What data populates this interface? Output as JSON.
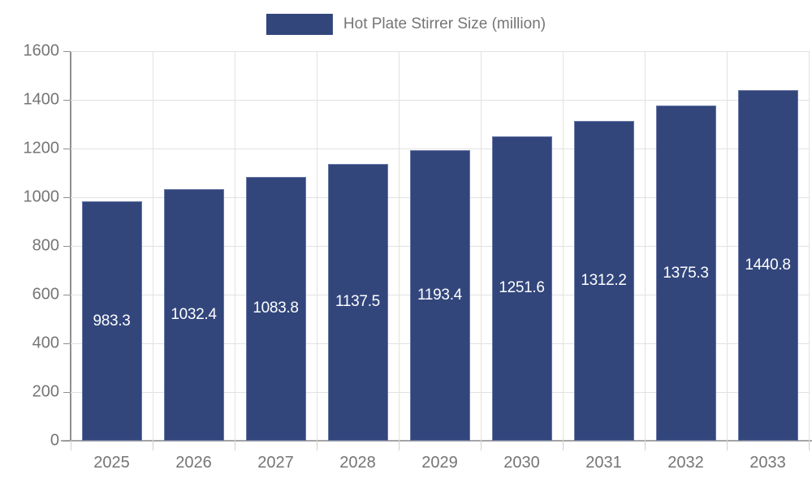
{
  "chart_data": {
    "type": "bar",
    "title": "Hot Plate Stirrer Size (million)",
    "categories": [
      "2025",
      "2026",
      "2027",
      "2028",
      "2029",
      "2030",
      "2031",
      "2032",
      "2033"
    ],
    "values": [
      983.3,
      1032.4,
      1083.8,
      1137.5,
      1193.4,
      1251.6,
      1312.2,
      1375.3,
      1440.8
    ],
    "value_labels": [
      "983.3",
      "1032.4",
      "1083.8",
      "1137.5",
      "1193.4",
      "1251.6",
      "1312.2",
      "1375.3",
      "1440.8"
    ],
    "xlabel": "",
    "ylabel": "",
    "ylim": [
      0,
      1600
    ],
    "yticks": [
      0,
      200,
      400,
      600,
      800,
      1000,
      1200,
      1400,
      1600
    ],
    "grid": true,
    "legend_position": "top-center",
    "colors": {
      "bar": "#32467c",
      "bar_label_text": "#ffffff",
      "axis_text": "#757575",
      "gridline": "#e2e2e2",
      "axis_line": "#9a9a9a",
      "background": "#ffffff"
    }
  }
}
